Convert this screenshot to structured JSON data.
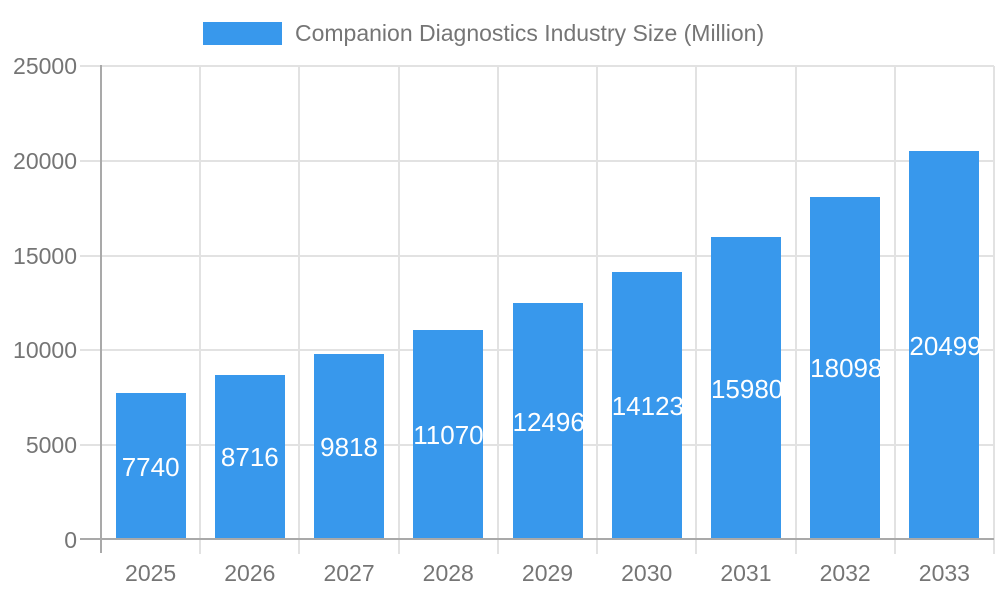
{
  "chart_data": {
    "type": "bar",
    "title": "Companion Diagnostics Industry Size (Million)",
    "categories": [
      "2025",
      "2026",
      "2027",
      "2028",
      "2029",
      "2030",
      "2031",
      "2032",
      "2033"
    ],
    "values": [
      7740,
      8716,
      9818,
      11070,
      12496,
      14123,
      15980,
      18098,
      20499
    ],
    "series_name": "Companion Diagnostics Industry Size (Million)",
    "xlabel": "",
    "ylabel": "",
    "ylim": [
      0,
      25000
    ],
    "ytick_step": 5000,
    "yticks": [
      "0",
      "5000",
      "10000",
      "15000",
      "20000",
      "25000"
    ],
    "grid": true,
    "legend_position": "top",
    "colors": {
      "bar": "#3898EC",
      "value_label": "#FFFFFF",
      "axis_text": "#757575",
      "grid_line": "#E2E2E2",
      "axis_line": "#A9A9A9",
      "background": "#FFFFFF"
    }
  }
}
